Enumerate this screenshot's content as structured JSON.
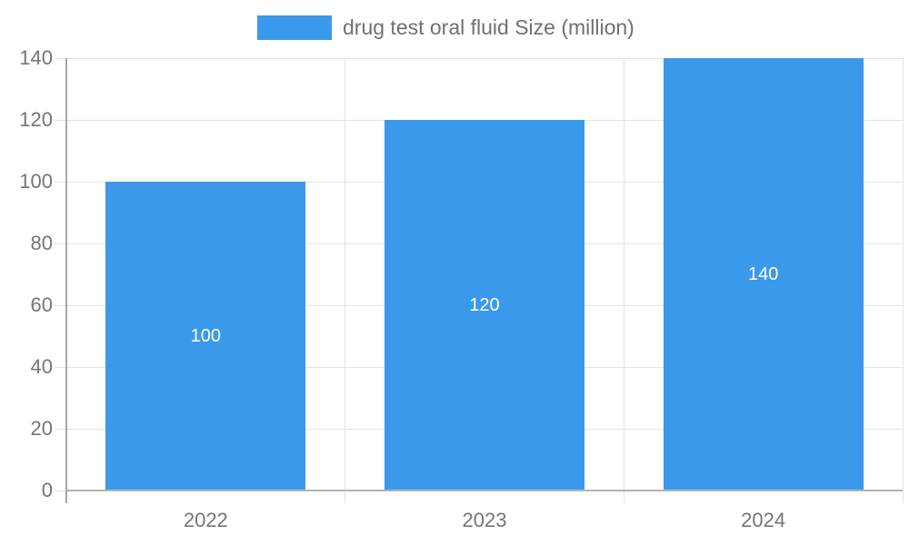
{
  "chart_data": {
    "type": "bar",
    "title": "",
    "categories": [
      "2022",
      "2023",
      "2024"
    ],
    "series": [
      {
        "name": "drug test oral fluid Size (million)",
        "values": [
          100,
          120,
          140
        ]
      }
    ],
    "data_labels": [
      "100",
      "120",
      "140"
    ],
    "ytick_labels": [
      "0",
      "20",
      "40",
      "60",
      "80",
      "100",
      "120",
      "140"
    ],
    "yticks": [
      0,
      20,
      40,
      60,
      80,
      100,
      120,
      140
    ],
    "ylim": [
      0,
      140
    ],
    "xlabel": "",
    "ylabel": "",
    "grid": true,
    "legend_position": "top",
    "colors": {
      "bar": "#3B99EC",
      "data_label": "#ffffff",
      "axis_text": "#757575",
      "legend_text": "#707070",
      "gridline": "#e3e3e3",
      "y_axis_line": "#a6a6a6",
      "x_axis_line": "#b3b3b3",
      "background": "#ffffff"
    }
  }
}
